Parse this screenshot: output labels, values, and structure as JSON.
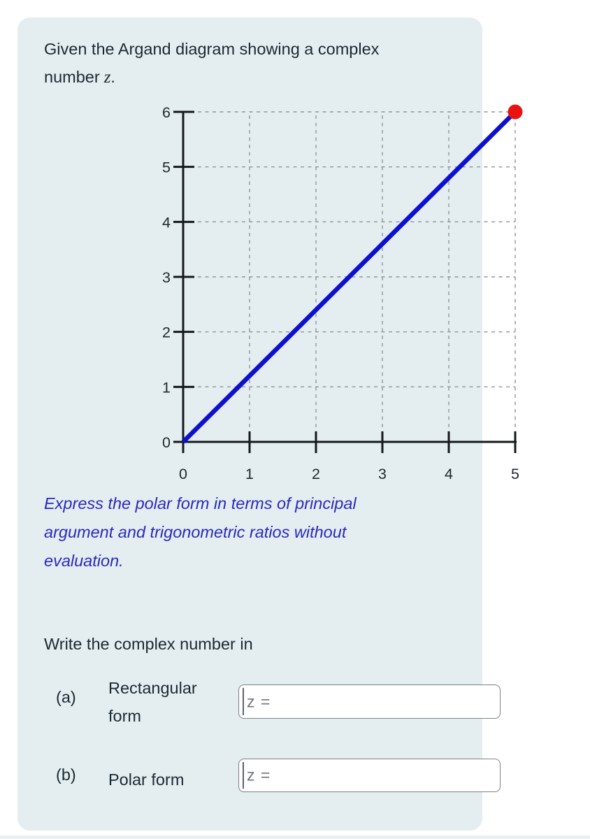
{
  "question": {
    "title_text": "Given the Argand diagram showing a complex number",
    "title_math_symbol": "z",
    "title_suffix": ".",
    "instruction": "Express the polar form in terms of principal argument and trigonometric ratios without evaluation.",
    "prompt": "Write the complex number in"
  },
  "chart_data": {
    "type": "line",
    "title": "",
    "description": "Argand diagram: complex number z drawn as a segment from the origin to the point 5 + 6i, marked with a red dot",
    "x_axis": {
      "label": "",
      "ticks": [
        0,
        1,
        2,
        3,
        4,
        5
      ],
      "range": [
        0,
        5
      ]
    },
    "y_axis": {
      "label": "",
      "ticks": [
        0,
        1,
        2,
        3,
        4,
        5,
        6
      ],
      "range": [
        0,
        6
      ]
    },
    "series": [
      {
        "name": "z",
        "x": [
          0,
          5
        ],
        "y": [
          0,
          6
        ],
        "color": "#0e10cf"
      }
    ],
    "point": {
      "re": 5,
      "im": 6,
      "color": "#ea1210"
    },
    "grid": "dashed"
  },
  "parts": [
    {
      "label": "(a)",
      "name": "Rectangular form",
      "input_prefix": "z =",
      "input_value": ""
    },
    {
      "label": "(b)",
      "name": "Polar form",
      "input_prefix": "z =",
      "input_value": ""
    }
  ],
  "colors": {
    "card_bg": "#e4edf0",
    "accent_blue": "#2a2abd",
    "grid": "#8d969a",
    "axis": "#15191b",
    "line_blue": "#0e10cf",
    "point_red": "#ea1210"
  }
}
